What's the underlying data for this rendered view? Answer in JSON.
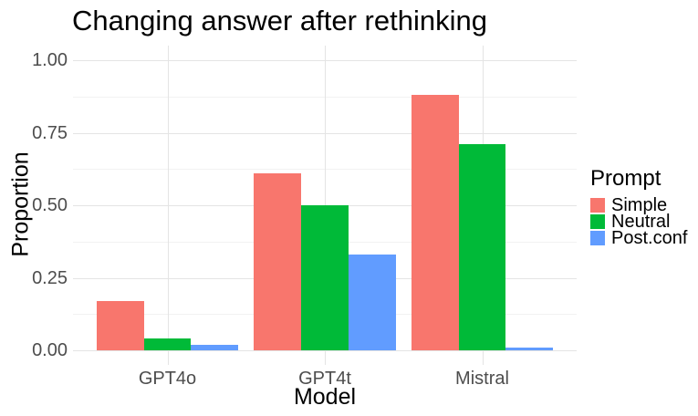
{
  "chart_data": {
    "type": "bar",
    "title": "Changing answer after rethinking",
    "xlabel": "Model",
    "ylabel": "Proportion",
    "categories": [
      "GPT4o",
      "GPT4t",
      "Mistral"
    ],
    "series": [
      {
        "name": "Simple",
        "color": "#F8766D",
        "values": [
          0.17,
          0.61,
          0.88
        ]
      },
      {
        "name": "Neutral",
        "color": "#00BA38",
        "values": [
          0.04,
          0.5,
          0.71
        ]
      },
      {
        "name": "Post.conf",
        "color": "#619CFF",
        "values": [
          0.02,
          0.33,
          0.01
        ]
      }
    ],
    "ylim": [
      0,
      1
    ],
    "y_ticks": [
      {
        "label": "0.00",
        "value": 0.0
      },
      {
        "label": "0.25",
        "value": 0.25
      },
      {
        "label": "0.50",
        "value": 0.5
      },
      {
        "label": "0.75",
        "value": 0.75
      },
      {
        "label": "1.00",
        "value": 1.0
      }
    ],
    "y_minor_values": [
      0.125,
      0.375,
      0.625,
      0.875
    ],
    "grid": true,
    "legend": {
      "title": "Prompt",
      "position": "right"
    }
  },
  "style": {
    "grid_major_color": "#E4E4E4",
    "grid_minor_color": "#F2F2F2",
    "tick_label_color": "#4D4D4D",
    "text_color": "#000000",
    "background_color": "#FFFFFF"
  }
}
